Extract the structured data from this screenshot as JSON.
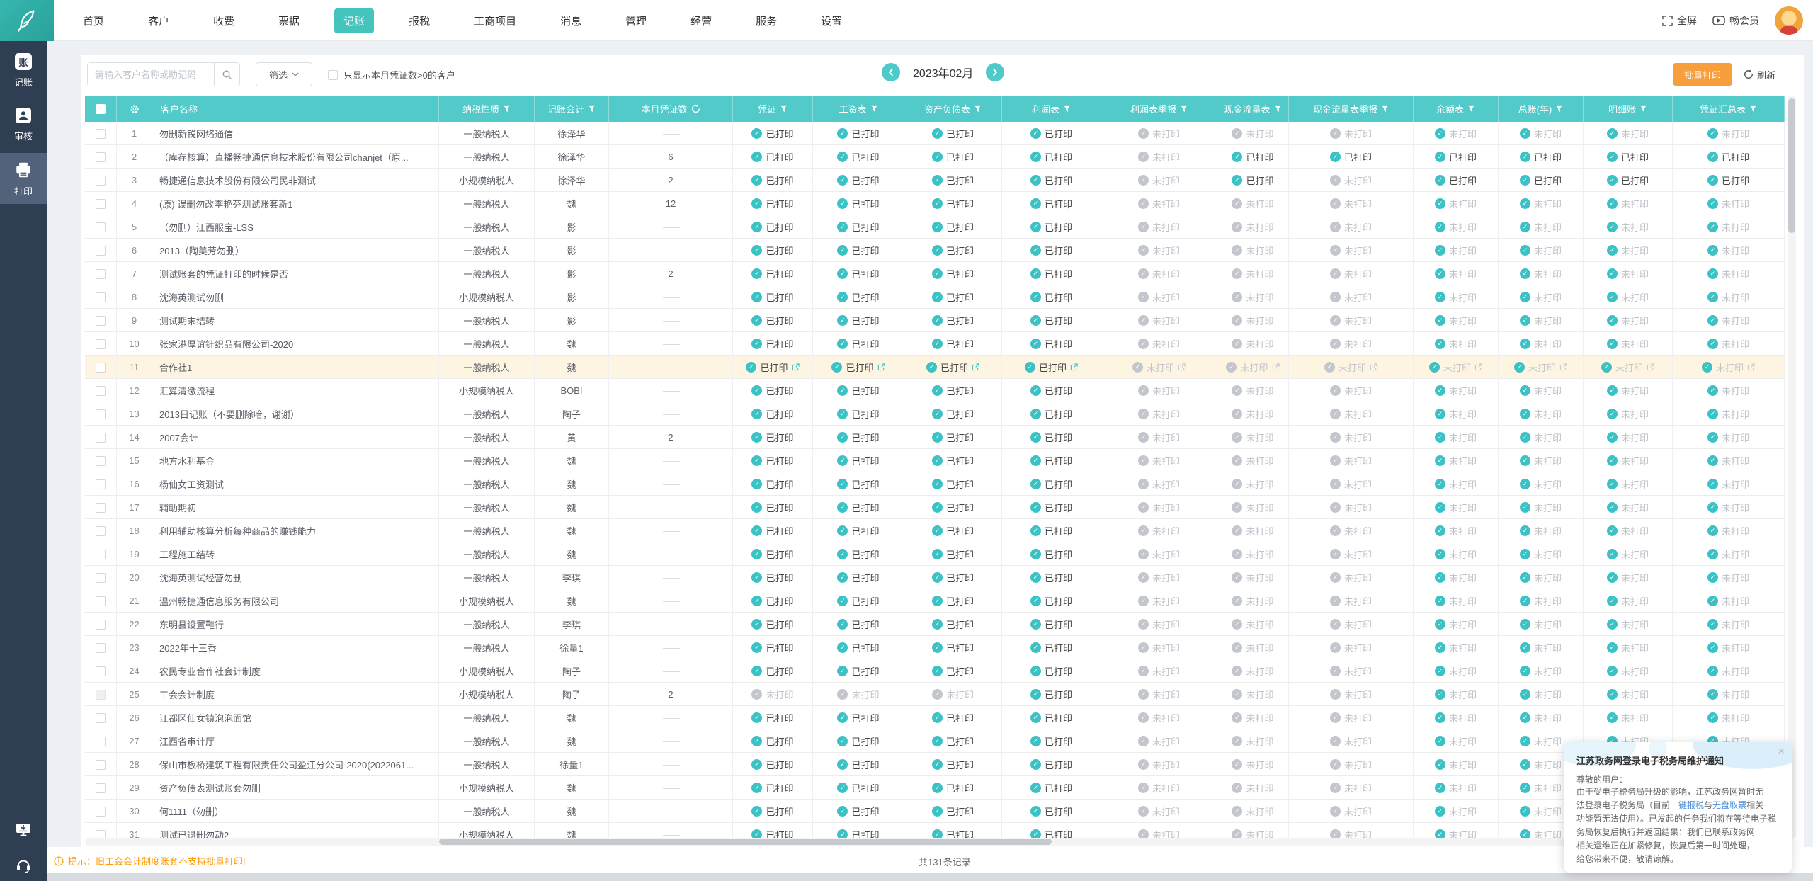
{
  "topnav": {
    "items": [
      {
        "key": "home",
        "label": "首页"
      },
      {
        "key": "customers",
        "label": "客户"
      },
      {
        "key": "fees",
        "label": "收费"
      },
      {
        "key": "invoices",
        "label": "票据"
      },
      {
        "key": "bookkeeping",
        "label": "记账",
        "active": true
      },
      {
        "key": "tax-filing",
        "label": "报税"
      },
      {
        "key": "business-projects",
        "label": "工商项目"
      },
      {
        "key": "messages",
        "label": "消息"
      },
      {
        "key": "management",
        "label": "管理"
      },
      {
        "key": "operations",
        "label": "经营"
      },
      {
        "key": "services",
        "label": "服务"
      },
      {
        "key": "settings",
        "label": "设置"
      }
    ],
    "fullscreen_label": "全屏",
    "member_label": "畅会员"
  },
  "sidebar": {
    "items": [
      {
        "key": "bookkeeping",
        "label": "记账",
        "icon": "ledger"
      },
      {
        "key": "review",
        "label": "审核",
        "icon": "person"
      },
      {
        "key": "print",
        "label": "打印",
        "icon": "printer",
        "active": true
      }
    ]
  },
  "toolbar": {
    "search_placeholder": "请输入客户名称或助记码",
    "filter_label": "筛选",
    "checkbox_label": "只显示本月凭证数>0的客户",
    "month": "2023年02月",
    "batch_print": "批量打印",
    "refresh_label": "刷新"
  },
  "table": {
    "columns": [
      {
        "label": "客户名称",
        "icon": null
      },
      {
        "label": "纳税性质",
        "icon": "filter"
      },
      {
        "label": "记账会计",
        "icon": "filter"
      },
      {
        "label": "本月凭证数",
        "icon": "refresh"
      },
      {
        "label": "凭证",
        "icon": "filter"
      },
      {
        "label": "工资表",
        "icon": "filter"
      },
      {
        "label": "资产负债表",
        "icon": "filter"
      },
      {
        "label": "利润表",
        "icon": "filter"
      },
      {
        "label": "利润表季报",
        "icon": "filter"
      },
      {
        "label": "现金流量表",
        "icon": "filter"
      },
      {
        "label": "现金流量表季报",
        "icon": "filter"
      },
      {
        "label": "余额表",
        "icon": "filter"
      },
      {
        "label": "总账(年)",
        "icon": "filter"
      },
      {
        "label": "明细账",
        "icon": "filter"
      },
      {
        "label": "凭证汇总表",
        "icon": "filter"
      }
    ],
    "status_labels": {
      "printed": "已打印",
      "unprinted": "未打印"
    },
    "status_patterns": {
      "D": [
        "p",
        "p",
        "p",
        "p",
        "n",
        "n",
        "n",
        "t",
        "t",
        "t",
        "t"
      ],
      "R2": [
        "p",
        "p",
        "p",
        "p",
        "n",
        "p",
        "p",
        "p",
        "p",
        "p",
        "p"
      ],
      "R3": [
        "p",
        "p",
        "p",
        "p",
        "n",
        "p",
        "n",
        "p",
        "p",
        "p",
        "p"
      ],
      "R25": [
        "n",
        "n",
        "n",
        "p",
        "n",
        "n",
        "n",
        "t",
        "t",
        "t",
        "t"
      ]
    },
    "rows": [
      {
        "no": 1,
        "name": "勿删新锐网络通信",
        "tax": "一般纳税人",
        "acct": "徐泽华",
        "count": "",
        "pattern": "D"
      },
      {
        "no": 2,
        "name": "（库存核算）直播畅捷通信息技术股份有限公司chanjet（原...",
        "tax": "一般纳税人",
        "acct": "徐泽华",
        "count": "6",
        "pattern": "R2"
      },
      {
        "no": 3,
        "name": "畅捷通信息技术股份有限公司民非测试",
        "tax": "小规模纳税人",
        "acct": "徐泽华",
        "count": "2",
        "pattern": "R3"
      },
      {
        "no": 4,
        "name": "(原) 误删勿改李艳芬测试账套新1",
        "tax": "一般纳税人",
        "acct": "魏",
        "count": "12",
        "pattern": "D"
      },
      {
        "no": 5,
        "name": "（勿删）江西服宝-LSS",
        "tax": "一般纳税人",
        "acct": "影",
        "count": "",
        "pattern": "D"
      },
      {
        "no": 6,
        "name": "2013（陶美芳勿删）",
        "tax": "一般纳税人",
        "acct": "影",
        "count": "",
        "pattern": "D"
      },
      {
        "no": 7,
        "name": "测试账套的凭证打印的时候是否",
        "tax": "一般纳税人",
        "acct": "影",
        "count": "2",
        "pattern": "D"
      },
      {
        "no": 8,
        "name": "沈海英测试勿删",
        "tax": "小规模纳税人",
        "acct": "影",
        "count": "",
        "pattern": "D"
      },
      {
        "no": 9,
        "name": "测试期末结转",
        "tax": "一般纳税人",
        "acct": "影",
        "count": "",
        "pattern": "D"
      },
      {
        "no": 10,
        "name": "张家港厚谊针织品有限公司-2020",
        "tax": "一般纳税人",
        "acct": "魏",
        "count": "",
        "pattern": "D"
      },
      {
        "no": 11,
        "name": "合作社1",
        "tax": "一般纳税人",
        "acct": "魏",
        "count": "",
        "pattern": "D",
        "highlight": true,
        "links": true
      },
      {
        "no": 12,
        "name": "汇算清缴流程",
        "tax": "小规模纳税人",
        "acct": "BOBI",
        "count": "",
        "pattern": "D"
      },
      {
        "no": 13,
        "name": "2013日记账（不要删除哈，谢谢）",
        "tax": "一般纳税人",
        "acct": "陶子",
        "count": "",
        "pattern": "D"
      },
      {
        "no": 14,
        "name": "2007会计",
        "tax": "一般纳税人",
        "acct": "黄",
        "count": "2",
        "pattern": "D"
      },
      {
        "no": 15,
        "name": "地方水利基金",
        "tax": "一般纳税人",
        "acct": "魏",
        "count": "",
        "pattern": "D"
      },
      {
        "no": 16,
        "name": "杨仙女工资测试",
        "tax": "一般纳税人",
        "acct": "魏",
        "count": "",
        "pattern": "D"
      },
      {
        "no": 17,
        "name": "辅助期初",
        "tax": "一般纳税人",
        "acct": "魏",
        "count": "",
        "pattern": "D"
      },
      {
        "no": 18,
        "name": "利用辅助核算分析每种商品的赚钱能力",
        "tax": "一般纳税人",
        "acct": "魏",
        "count": "",
        "pattern": "D"
      },
      {
        "no": 19,
        "name": "工程施工结转",
        "tax": "一般纳税人",
        "acct": "魏",
        "count": "",
        "pattern": "D"
      },
      {
        "no": 20,
        "name": "沈海英测试经营勿删",
        "tax": "一般纳税人",
        "acct": "李琪",
        "count": "",
        "pattern": "D"
      },
      {
        "no": 21,
        "name": "温州畅捷通信息服务有限公司",
        "tax": "小规模纳税人",
        "acct": "魏",
        "count": "",
        "pattern": "D"
      },
      {
        "no": 22,
        "name": "东明县设置鞋行",
        "tax": "一般纳税人",
        "acct": "李琪",
        "count": "",
        "pattern": "D"
      },
      {
        "no": 23,
        "name": "2022年十三香",
        "tax": "一般纳税人",
        "acct": "徐量1",
        "count": "",
        "pattern": "D"
      },
      {
        "no": 24,
        "name": "农民专业合作社会计制度",
        "tax": "小规模纳税人",
        "acct": "陶子",
        "count": "",
        "pattern": "D"
      },
      {
        "no": 25,
        "name": "工会会计制度",
        "tax": "小规模纳税人",
        "acct": "陶子",
        "count": "2",
        "pattern": "R25",
        "disabled": true
      },
      {
        "no": 26,
        "name": "江都区仙女镇泡泡面馆",
        "tax": "一般纳税人",
        "acct": "魏",
        "count": "",
        "pattern": "D"
      },
      {
        "no": 27,
        "name": "江西省审计厅",
        "tax": "一般纳税人",
        "acct": "魏",
        "count": "",
        "pattern": "D"
      },
      {
        "no": 28,
        "name": "保山市板桥建筑工程有限责任公司盈江分公司-2020(2022061...",
        "tax": "一般纳税人",
        "acct": "徐量1",
        "count": "",
        "pattern": "D"
      },
      {
        "no": 29,
        "name": "资产负债表测试账套勿删",
        "tax": "小规模纳税人",
        "acct": "魏",
        "count": "",
        "pattern": "D"
      },
      {
        "no": 30,
        "name": "何1111（勿删）",
        "tax": "一般纳税人",
        "acct": "魏",
        "count": "",
        "pattern": "D"
      },
      {
        "no": 31,
        "name": "测试已退删勿动2",
        "tax": "小规模纳税人",
        "acct": "魏",
        "count": "",
        "pattern": "D"
      }
    ]
  },
  "footer": {
    "hint": "提示：旧工会会计制度账套不支持批量打印!",
    "total": "共131条记录"
  },
  "toast": {
    "title": "江苏政务网登录电子税务局维护通知",
    "greeting": "尊敬的用户：",
    "lines": [
      [
        {
          "t": "由于受电子税务局升级的影响，江苏政务网暂时无"
        }
      ],
      [
        {
          "t": "法登录电子税务局（目前"
        },
        {
          "t": "一键报税",
          "link": true
        },
        {
          "t": "与"
        },
        {
          "t": "无盘取票",
          "link": true
        },
        {
          "t": "相关"
        }
      ],
      [
        {
          "t": "功能暂无法使用）。已发起的任务我们将在等待电子税"
        }
      ],
      [
        {
          "t": "务局恢复后执行并返回结果；我们已联系政务网"
        }
      ],
      [
        {
          "t": "相关运维正在加紧修复，恢复后第一时间处理，"
        }
      ],
      [
        {
          "t": "给您带来不便，敬请谅解。"
        }
      ]
    ]
  },
  "colors": {
    "accent_teal": "#45c4bd",
    "table_header": "#52caca",
    "printed_circle": "#3cc2c5",
    "unprinted_circle": "#c3c7cd",
    "sidebar_bg": "#2f3e52",
    "orange_button": "#f79e3d",
    "highlight_row": "#fdf5e1",
    "hint_orange": "#ff9900"
  }
}
